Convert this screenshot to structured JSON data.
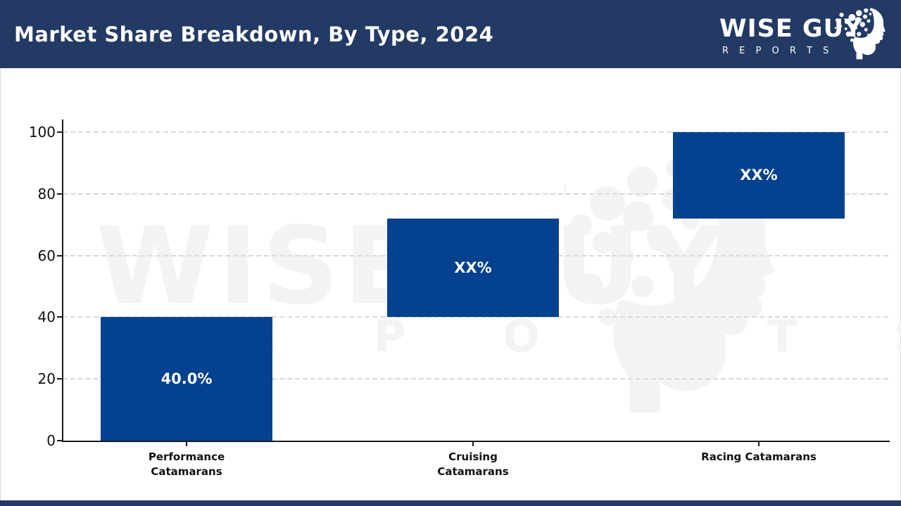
{
  "header": {
    "title": "Market Share Breakdown, By Type, 2024",
    "logo": {
      "line1": "WISE GUY",
      "line2": "R E P O R T S"
    },
    "bg_color": "#223A64"
  },
  "watermark": {
    "line1": "WISE GUY",
    "line2": "R E P O R T S",
    "color": "#f3f3f3"
  },
  "colors": {
    "bar": "#04418F",
    "bar_label": "#ffffff",
    "axis": "#1a1a1a",
    "gridline": "#d9d9d9",
    "header_bg": "#223A64",
    "footer_bg": "#223A64"
  },
  "chart_data": {
    "type": "bar",
    "subtype": "waterfall",
    "title": "Market Share Breakdown, By Type, 2024",
    "xlabel": "",
    "ylabel": "",
    "categories": [
      "Performance Catamarans",
      "Cruising Catamarans",
      "Racing Catamarans"
    ],
    "category_lines": [
      [
        "Performance",
        "Catamarans"
      ],
      [
        "Cruising",
        "Catamarans"
      ],
      [
        "Racing Catamarans"
      ]
    ],
    "bars": [
      {
        "category": "Performance Catamarans",
        "start": 0,
        "end": 40,
        "value": 40,
        "label": "40.0%"
      },
      {
        "category": "Cruising Catamarans",
        "start": 40,
        "end": 72,
        "value": 32,
        "label": "XX%"
      },
      {
        "category": "Racing Catamarans",
        "start": 72,
        "end": 100,
        "value": 28,
        "label": "XX%"
      }
    ],
    "ylim": [
      0,
      100
    ],
    "yticks": [
      0,
      20,
      40,
      60,
      80,
      100
    ],
    "grid": {
      "axis": "y",
      "style": "dashed",
      "color": "#d9d9d9"
    },
    "legend": "none"
  }
}
